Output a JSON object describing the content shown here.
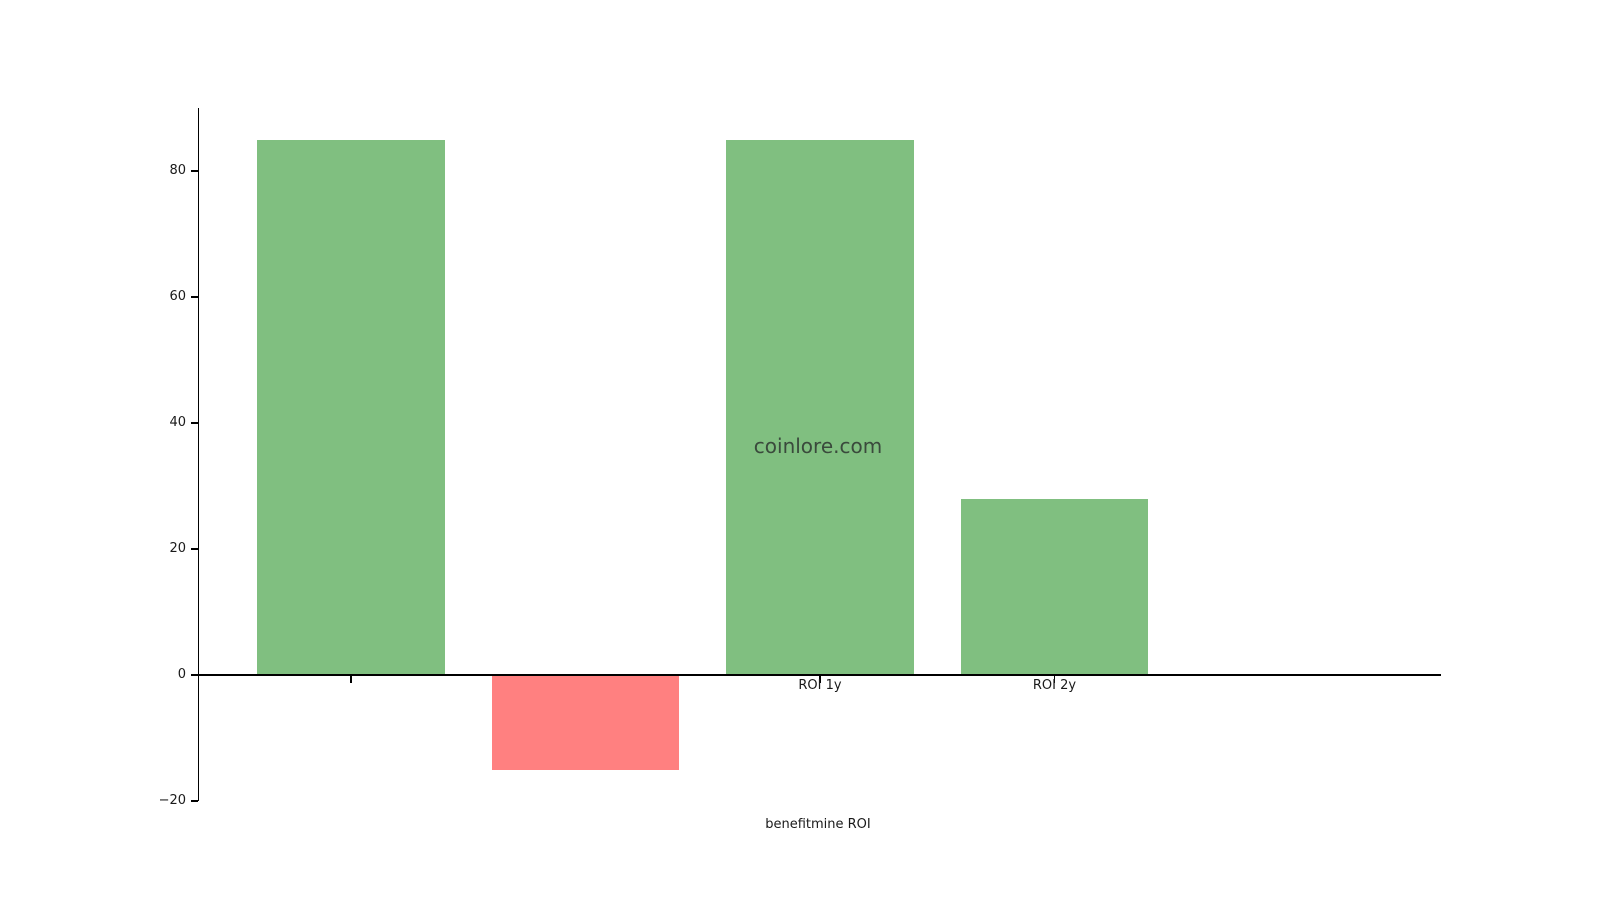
{
  "chart_data": {
    "type": "bar",
    "title": "",
    "xlabel": "benefitmine ROI",
    "ylabel": "",
    "categories": [
      "",
      "",
      "ROI 1y",
      "ROI 2y"
    ],
    "values": [
      85,
      -15,
      85,
      28
    ],
    "bar_colors": [
      "#80bf80",
      "#ff8080",
      "#80bf80",
      "#80bf80"
    ],
    "positive_color": "#80bf80",
    "negative_color": "#ff8080",
    "yticks": [
      -20,
      0,
      20,
      40,
      60,
      80
    ],
    "ylim": [
      -20,
      90
    ],
    "grid": false,
    "legend_position": "none",
    "axis_color": "#000000",
    "tick_label_color": "#1a1a1a",
    "watermark": "coinlore.com",
    "watermark_color": "#3a4a3c",
    "background_color": "#ffffff"
  }
}
